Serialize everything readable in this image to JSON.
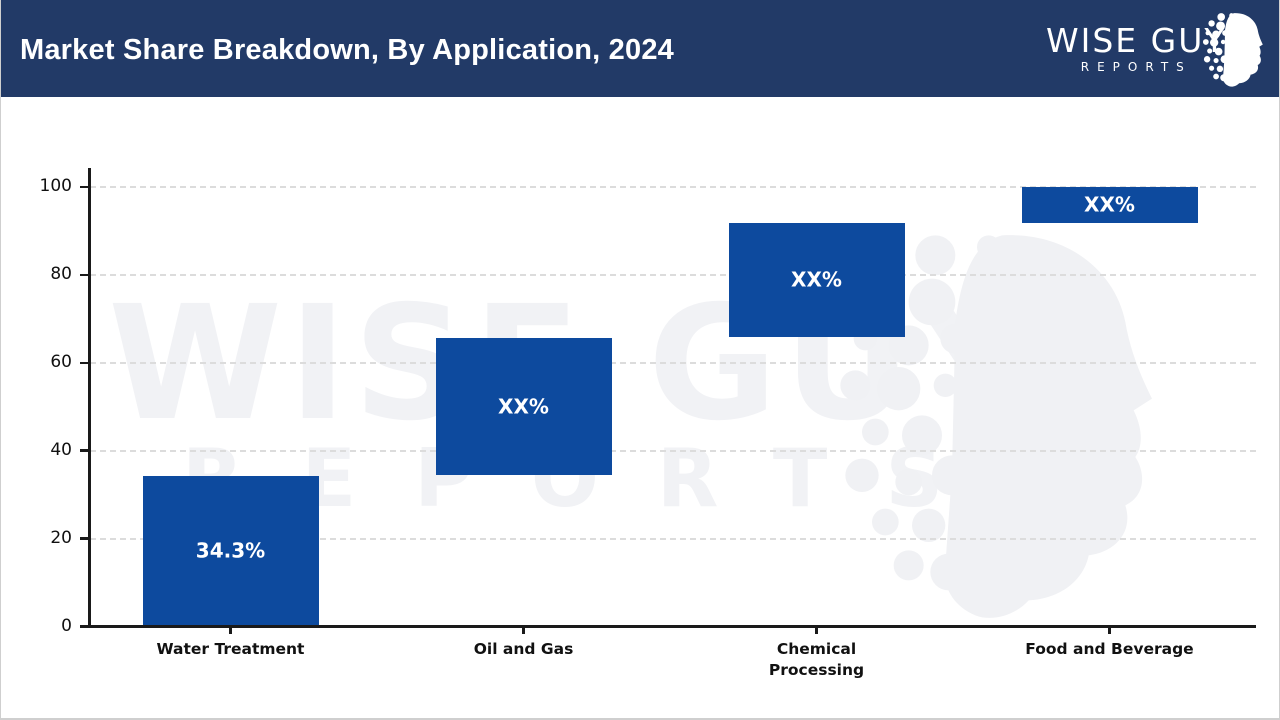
{
  "header": {
    "title": "Market Share Breakdown, By Application, 2024",
    "bg_color": "#223a67",
    "logo": {
      "line1": "WISE GUY",
      "line2": "REPORTS"
    }
  },
  "watermark": {
    "line1": "WISE GUY",
    "line2": "REPORTS"
  },
  "chart_data": {
    "type": "bar",
    "subtype": "waterfall",
    "title": "Market Share Breakdown, By Application, 2024",
    "categories": [
      "Water Treatment",
      "Oil and Gas",
      "Chemical\nProcessing",
      "Food and Beverage"
    ],
    "segments": [
      {
        "category": "Water Treatment",
        "label": "34.3%",
        "start": 0,
        "end": 34.3
      },
      {
        "category": "Oil and Gas",
        "label": "XX%",
        "start": 34.4,
        "end": 65.6
      },
      {
        "category": "Chemical Processing",
        "label": "XX%",
        "start": 65.8,
        "end": 91.9
      },
      {
        "category": "Food and Beverage",
        "label": "XX%",
        "start": 91.9,
        "end": 100
      }
    ],
    "xlabel": "",
    "ylabel": "",
    "ylim": [
      0,
      100
    ],
    "yticks": [
      0,
      20,
      40,
      60,
      80,
      100
    ],
    "grid": "horizontal-dashed",
    "legend": "none",
    "bar_color": "#0d4a9e",
    "bar_label_color": "#ffffff",
    "axis_color": "#1a1a1a",
    "gridline_color": "#dcdcdc"
  }
}
